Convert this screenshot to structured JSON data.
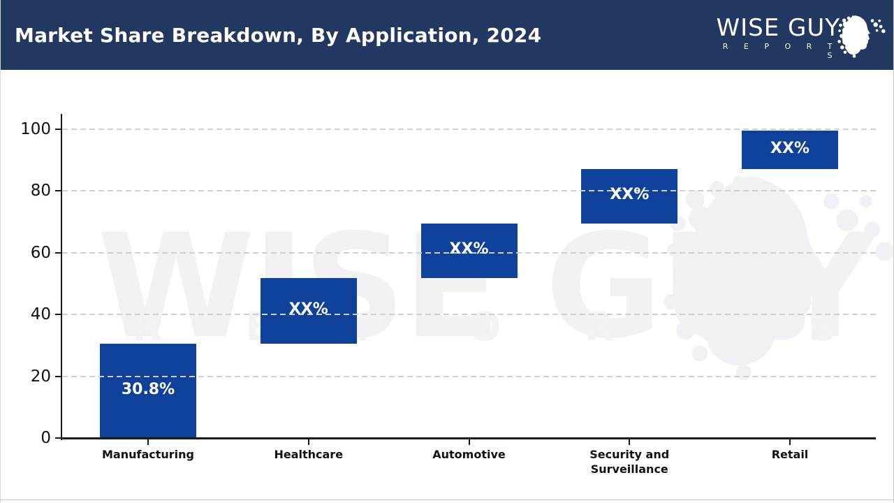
{
  "header": {
    "title": "Market Share Breakdown, By Application, 2024",
    "background_color": "#233860",
    "logo": {
      "primary": "WISE GUY",
      "secondary": "R E P O R T S"
    }
  },
  "watermark": {
    "line1": "WISE GUY",
    "line2": "R E P O R T S"
  },
  "chart_data": {
    "type": "bar",
    "subtype": "waterfall",
    "title": "Market Share Breakdown, By Application, 2024",
    "categories": [
      "Manufacturing",
      "Healthcare",
      "Automotive",
      "Security and Surveillance",
      "Retail"
    ],
    "bars": [
      {
        "category": "Manufacturing",
        "start": 0,
        "end": 30.8,
        "label": "30.8%"
      },
      {
        "category": "Healthcare",
        "start": 30.8,
        "end": 52.0,
        "label": "XX%"
      },
      {
        "category": "Automotive",
        "start": 52.0,
        "end": 69.6,
        "label": "XX%"
      },
      {
        "category": "Security and Surveillance",
        "start": 69.6,
        "end": 87.2,
        "label": "XX%"
      },
      {
        "category": "Retail",
        "start": 87.2,
        "end": 99.6,
        "label": "XX%"
      }
    ],
    "y_ticks": [
      0,
      20,
      40,
      60,
      80,
      100
    ],
    "ylim": [
      0,
      105
    ],
    "xlabel": "",
    "ylabel": "",
    "grid": "horizontal-dashed",
    "legend": "none",
    "bar_color": "#0e4199",
    "bar_label_color": "#ffffff",
    "grid_color": "#cfcfcf",
    "axis_color": "#1a1a1a"
  }
}
